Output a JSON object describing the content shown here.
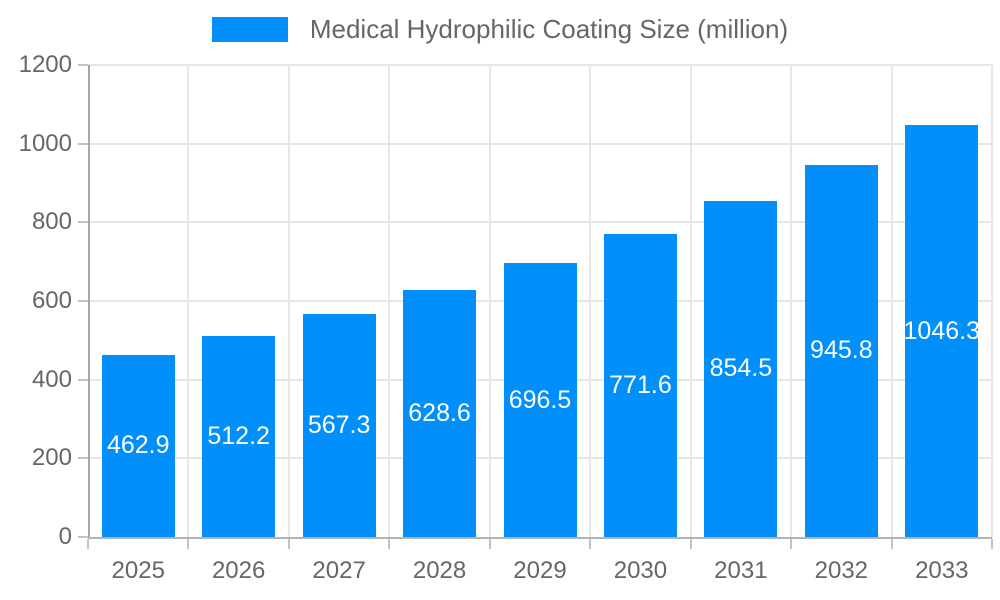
{
  "legend": {
    "swatch_color": "#008FFB",
    "label": "Medical Hydrophilic Coating Size (million)"
  },
  "chart_data": {
    "type": "bar",
    "title": "Medical Hydrophilic Coating Size (million)",
    "categories": [
      "2025",
      "2026",
      "2027",
      "2028",
      "2029",
      "2030",
      "2031",
      "2032",
      "2033"
    ],
    "series": [
      {
        "name": "Medical Hydrophilic Coating Size (million)",
        "values": [
          462.9,
          512.2,
          567.3,
          628.6,
          696.5,
          771.6,
          854.5,
          945.8,
          1046.3
        ]
      }
    ],
    "bar_value_labels": [
      "462.9",
      "512.2",
      "567.3",
      "628.6",
      "696.5",
      "771.6",
      "854.5",
      "945.8",
      "1046.3"
    ],
    "xlabel": "",
    "ylabel": "",
    "ylim": [
      0,
      1200
    ],
    "yticks": [
      0,
      200,
      400,
      600,
      800,
      1000,
      1200
    ],
    "grid": true,
    "legend_position": "top",
    "colors": {
      "bar": "#008FFB",
      "bar_label_text": "#ffffff",
      "axis_text": "#666666",
      "grid_line": "#e6e6e6",
      "axis_line": "#a6a6a6"
    }
  }
}
